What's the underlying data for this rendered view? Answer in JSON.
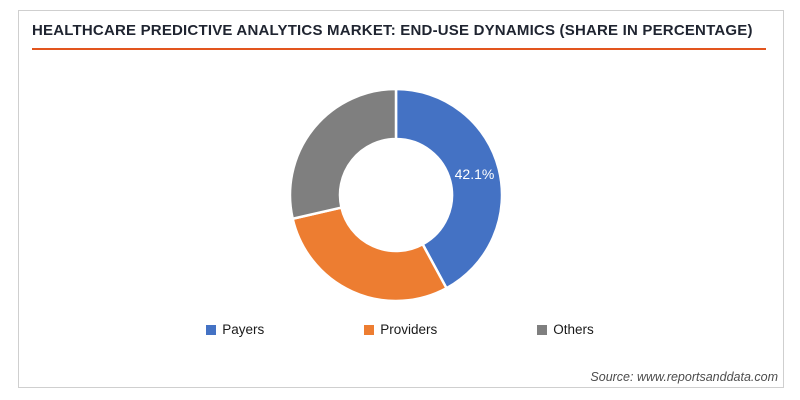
{
  "header": {
    "title": "HEALTHCARE PREDICTIVE ANALYTICS MARKET: END-USE DYNAMICS (SHARE IN PERCENTAGE)"
  },
  "chart_data": {
    "type": "pie",
    "subtype": "donut",
    "title": "HEALTHCARE PREDICTIVE ANALYTICS MARKET: END-USE DYNAMICS (SHARE IN PERCENTAGE)",
    "legend_position": "bottom",
    "start_angle_deg": 0,
    "inner_radius_ratio": 0.53,
    "slices": [
      {
        "name": "Payers",
        "value": 42.1,
        "color": "#4472C4",
        "label": "42.1%"
      },
      {
        "name": "Providers",
        "value": 29.3,
        "color": "#ED7D31",
        "label": ""
      },
      {
        "name": "Others",
        "value": 28.6,
        "color": "#7F7F7F",
        "label": ""
      }
    ]
  },
  "footer": {
    "source": "Source: www.reportsanddata.com"
  },
  "colors": {
    "accent_underline": "#E2551E",
    "frame_border": "#CFCFCF",
    "title_text": "#1F2430",
    "slice_label_text": "#FFFFFF"
  }
}
